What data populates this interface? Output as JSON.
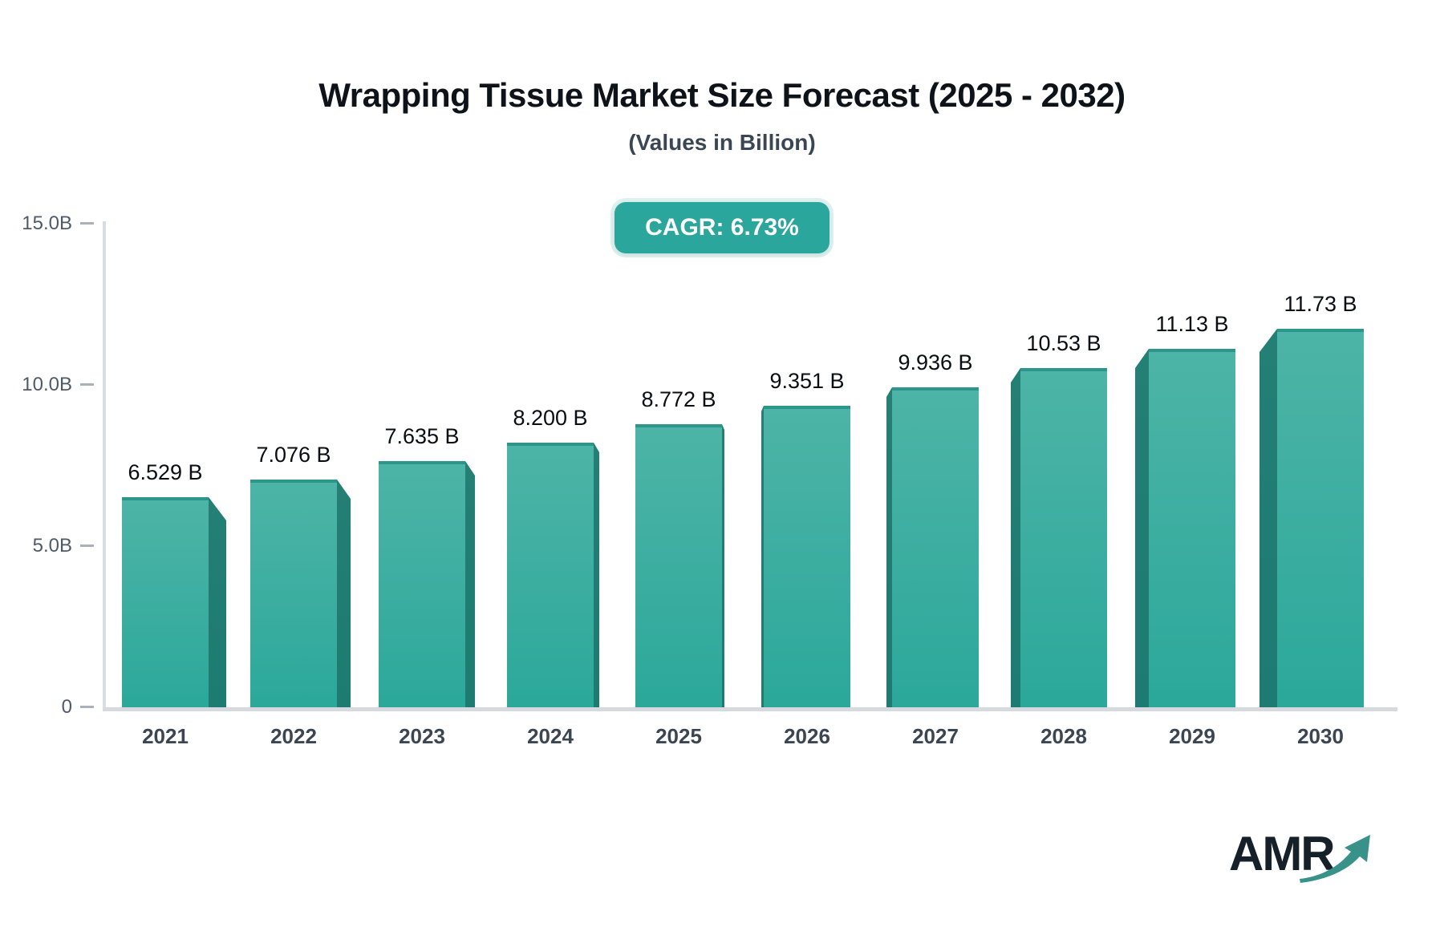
{
  "title": "Wrapping Tissue Market Size Forecast (2025 - 2032)",
  "subtitle": "(Values in Billion)",
  "cagr_label": "CAGR: 6.73%",
  "logo": {
    "text": "AMR"
  },
  "chart_data": {
    "type": "bar",
    "title": "Wrapping Tissue Market Size Forecast (2025 - 2032)",
    "subtitle": "(Values in Billion)",
    "annotation": "CAGR: 6.73%",
    "categories": [
      "2021",
      "2022",
      "2023",
      "2024",
      "2025",
      "2026",
      "2027",
      "2028",
      "2029",
      "2030"
    ],
    "values": [
      6.529,
      7.076,
      7.635,
      8.2,
      8.772,
      9.351,
      9.936,
      10.53,
      11.13,
      11.73
    ],
    "bar_labels": [
      "6.529 B",
      "7.076 B",
      "7.635 B",
      "8.200 B",
      "8.772 B",
      "9.351 B",
      "9.936 B",
      "10.53 B",
      "11.13 B",
      "11.73 B"
    ],
    "unit": "Billion",
    "xlabel": "",
    "ylabel": "",
    "ylim": [
      0,
      15
    ],
    "grid": false,
    "legend": false,
    "yticks": [
      {
        "value": 15,
        "label": "15.0B"
      },
      {
        "value": 10,
        "label": "10.0B"
      },
      {
        "value": 5,
        "label": "5.0B"
      },
      {
        "value": 0,
        "label": "0"
      }
    ],
    "colors": {
      "face_top": "#4db4a7",
      "face_bottom": "#2ba89a",
      "rim": "#2d968a",
      "side_top": "#247f75",
      "side_bottom": "#1d7b71",
      "badge": "#2aa69d",
      "axis": "#d6dade",
      "tick_text": "#4f5a66",
      "year_text": "#3b4553",
      "value_text": "#0a0e12"
    }
  }
}
